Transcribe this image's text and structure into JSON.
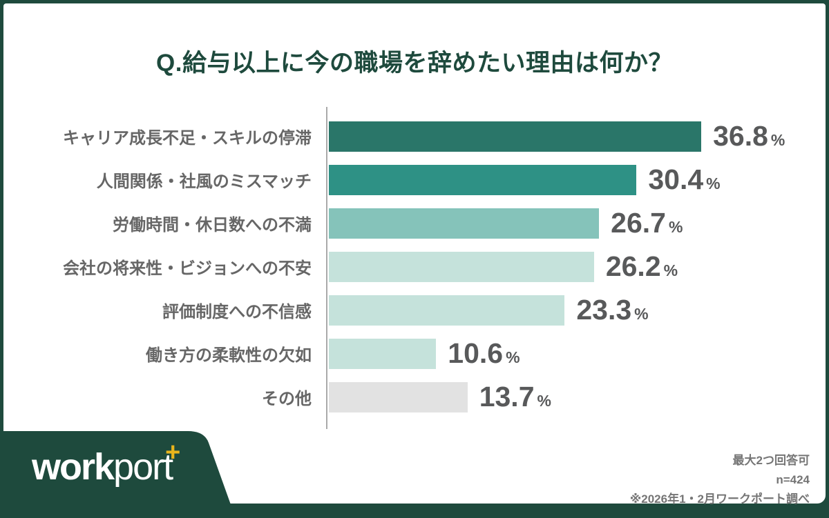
{
  "title": "Q.給与以上に今の職場を辞めたい理由は何か？",
  "chart_data": {
    "type": "bar",
    "orientation": "horizontal",
    "title": "Q.給与以上に今の職場を辞めたい理由は何か？",
    "categories": [
      "キャリア成長不足・スキルの停滞",
      "人間関係・社風のミスマッチ",
      "労働時間・休日数への不満",
      "会社の将来性・ビジョンへの不安",
      "評価制度への不信感",
      "働き方の柔軟性の欠如",
      "その他"
    ],
    "values": [
      36.8,
      30.4,
      26.7,
      26.2,
      23.3,
      10.6,
      13.7
    ],
    "unit": "%",
    "xlim": [
      0,
      40
    ],
    "grid": false,
    "legend": false,
    "bar_colors": [
      "#2a7669",
      "#2e9185",
      "#85c3ba",
      "#c5e2db",
      "#c5e2db",
      "#c5e2db",
      "#e2e2e2"
    ]
  },
  "footnotes": [
    "最大2つ回答可",
    "n=424",
    "※2026年1・2月ワークポート調べ"
  ],
  "logo": {
    "part1": "work",
    "part2": "por",
    "part3": "t",
    "plus": "+"
  },
  "colors": {
    "background": "#1e4a3d",
    "panel": "#ffffff",
    "title_text": "#1e4a3d",
    "label_text": "#666666",
    "value_text": "#58595a",
    "footnote_text": "#757575",
    "axis_line": "#a9a9a9",
    "logo_text": "#ffffff",
    "logo_plus": "#e9b51c"
  }
}
